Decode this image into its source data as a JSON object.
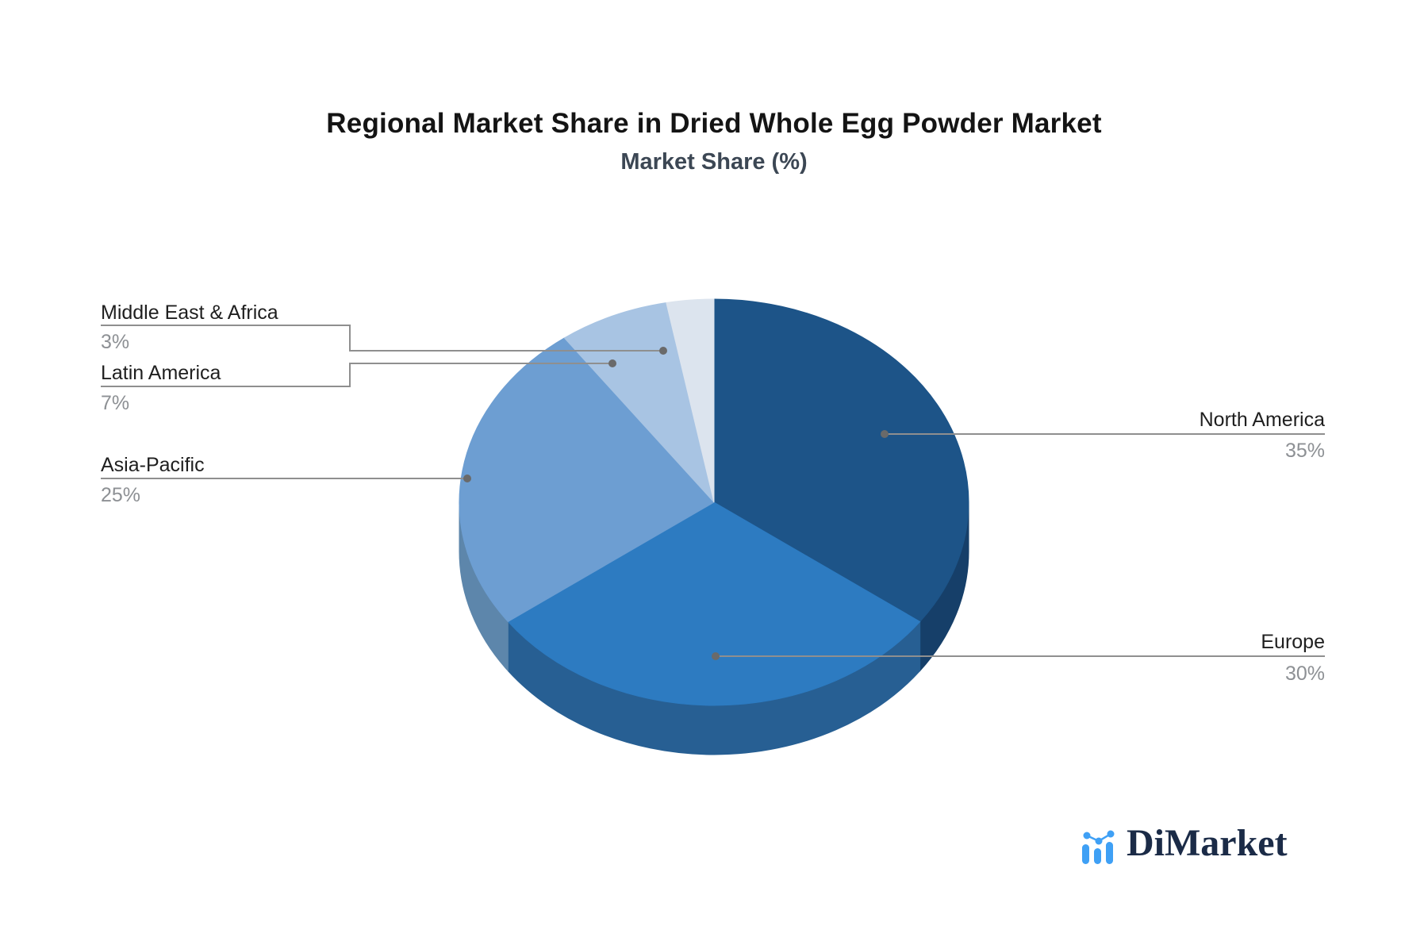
{
  "title": "Regional Market Share in Dried Whole Egg Powder Market",
  "subtitle": "Market Share (%)",
  "chart_data": {
    "type": "pie",
    "projection": "3d",
    "title": "Regional Market Share in Dried Whole Egg Powder Market",
    "subtitle": "Market Share (%)",
    "unit": "%",
    "start_angle_deg": 0,
    "direction": "clockwise",
    "legend_position": "callout-labels",
    "slices": [
      {
        "label": "North America",
        "value": 35,
        "display": "35%",
        "color": "#1d5488",
        "rim_color": "#163f69"
      },
      {
        "label": "Europe",
        "value": 30,
        "display": "30%",
        "color": "#2d7bc1",
        "rim_color": "#275f93"
      },
      {
        "label": "Asia-Pacific",
        "value": 25,
        "display": "25%",
        "color": "#6d9ed2",
        "rim_color": "#5d86ab"
      },
      {
        "label": "Latin America",
        "value": 7,
        "display": "7%",
        "color": "#a8c4e3",
        "rim_color": "#a8c4e3"
      },
      {
        "label": "Middle East & Africa",
        "value": 3,
        "display": "3%",
        "color": "#dce4ee",
        "rim_color": "#dce4ee"
      }
    ]
  },
  "callout_style": {
    "label_color": "#1f1f1f",
    "value_color": "#8d9094",
    "line_color": "#8f8f8f",
    "dot_color": "#6a6a6a"
  },
  "logo": {
    "text": "DiMarket",
    "icon": "bar-sparkline-icon",
    "icon_color": "#3fa0f5",
    "text_color": "#1b2b47"
  }
}
